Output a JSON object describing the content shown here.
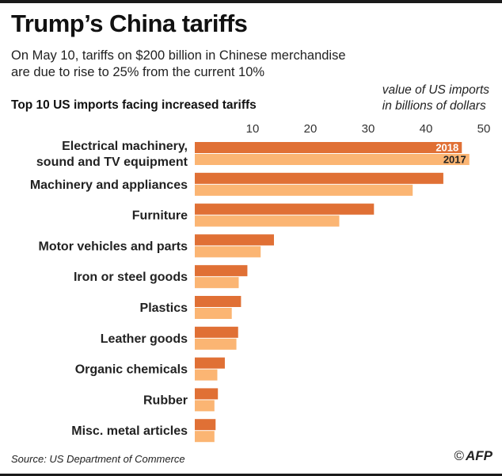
{
  "header": {
    "title": "Trump’s China tariffs",
    "subtitle_line1": "On May 10, tariffs on $200 billion in Chinese merchandise",
    "subtitle_line2": "are due to rise to 25% from the current 10%",
    "section_title": "Top 10 US imports facing increased tariffs",
    "unit_line1": "value of US imports",
    "unit_line2": "in billions of dollars"
  },
  "footer": {
    "source": "Source: US Department of Commerce",
    "copyright": "©",
    "logo": "AFP"
  },
  "colors": {
    "series_2018": "#e07035",
    "series_2017": "#fbb573",
    "axis_text": "#333333",
    "label_2018_text": "#ffffff",
    "label_2017_text": "#222222"
  },
  "chart_data": {
    "type": "bar",
    "orientation": "horizontal",
    "title": "Top 10 US imports facing increased tariffs",
    "xlabel": "value of US imports in billions of dollars",
    "ylabel": "",
    "xlim": [
      0,
      50
    ],
    "ticks": [
      10,
      20,
      30,
      40,
      50
    ],
    "grid": false,
    "categories": [
      [
        "Electrical machinery,",
        "sound and TV equipment"
      ],
      [
        "Machinery and appliances"
      ],
      [
        "Furniture"
      ],
      [
        "Motor vehicles and parts"
      ],
      [
        "Iron or steel goods"
      ],
      [
        "Plastics"
      ],
      [
        "Leather goods"
      ],
      [
        "Organic chemicals"
      ],
      [
        "Rubber"
      ],
      [
        "Misc. metal articles"
      ]
    ],
    "series": [
      {
        "name": "2018",
        "values": [
          46.2,
          43.0,
          31.0,
          13.7,
          9.1,
          8.0,
          7.5,
          5.2,
          4.0,
          3.6
        ]
      },
      {
        "name": "2017",
        "values": [
          47.5,
          37.7,
          25.0,
          11.4,
          7.6,
          6.4,
          7.2,
          3.9,
          3.4,
          3.4
        ]
      }
    ]
  }
}
